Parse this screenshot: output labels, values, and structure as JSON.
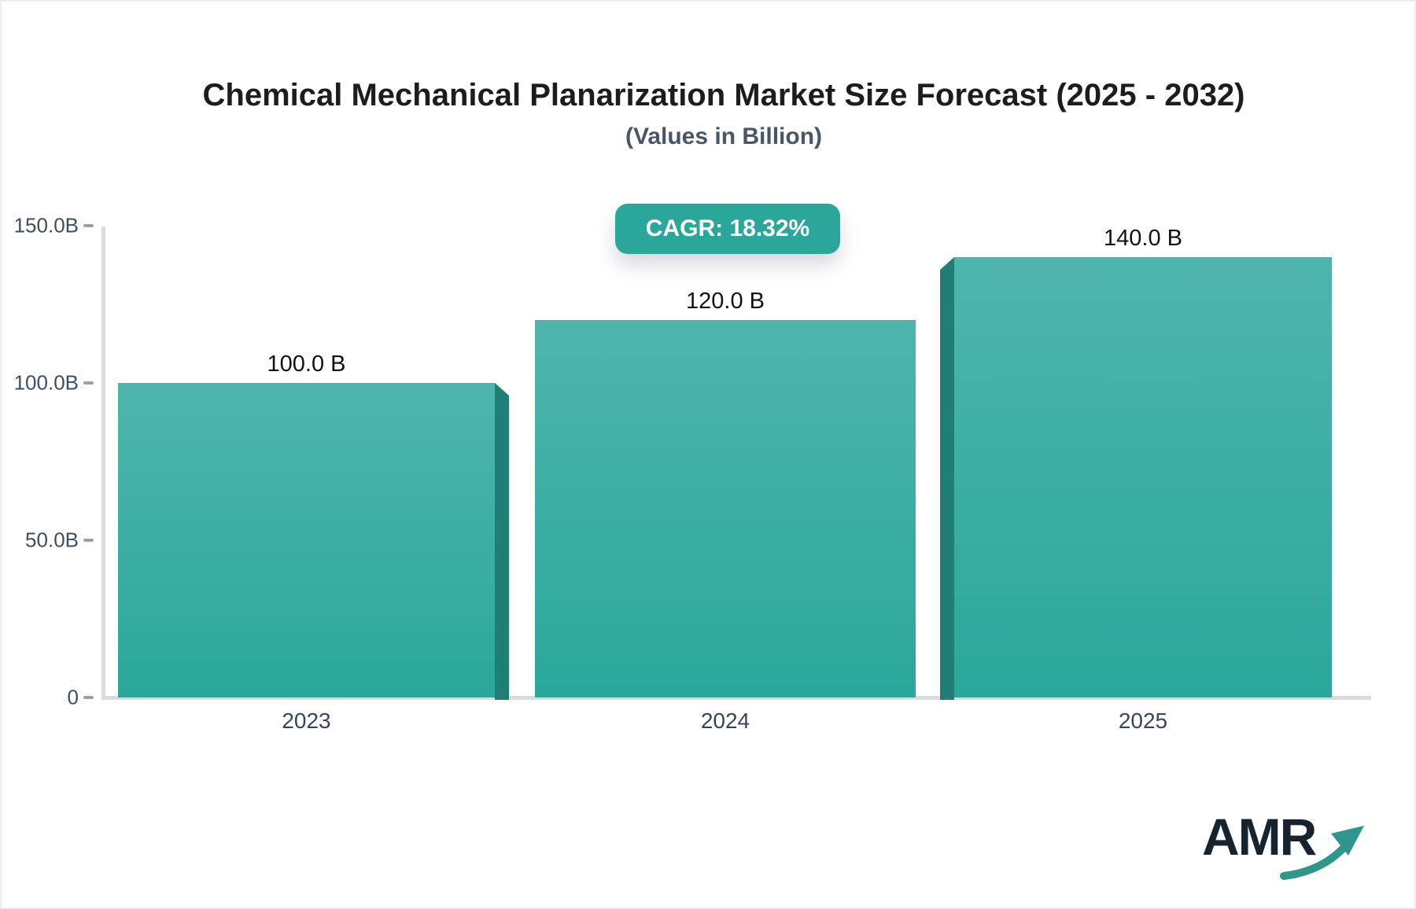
{
  "header": {
    "title": "Chemical Mechanical Planarization Market Size Forecast (2025 - 2032)",
    "subtitle": "(Values in Billion)",
    "cagr_label": "CAGR: 18.32%"
  },
  "chart_data": {
    "type": "bar",
    "title": "Chemical Mechanical Planarization Market Size Forecast (2025 - 2032)",
    "subtitle": "(Values in Billion)",
    "unit": "Billion",
    "cagr": "18.32%",
    "categories": [
      "2023",
      "2024",
      "2025"
    ],
    "values": [
      100,
      120,
      140
    ],
    "value_labels": [
      "100.0 B",
      "120.0 B",
      "140.0 B"
    ],
    "ytick_values": [
      0,
      50,
      100,
      150
    ],
    "ytick_labels": [
      "0",
      "50.0B",
      "100.0B",
      "150.0B"
    ],
    "ylim": [
      0,
      150
    ],
    "xlabel": "",
    "ylabel": "",
    "grid": false,
    "legend": false,
    "depth_sides": [
      "right",
      "none",
      "left"
    ],
    "bar_color_top": "#4fb5ac",
    "bar_color_bottom": "#2aa89b",
    "bar_side_color": "#1f7e75",
    "accent_color": "#2aa79a",
    "axis_line_color": "#d9dbe0"
  },
  "logo": {
    "text": "AMR",
    "icon": "trend-arrow-icon",
    "arrow_color": "#2f968d"
  }
}
